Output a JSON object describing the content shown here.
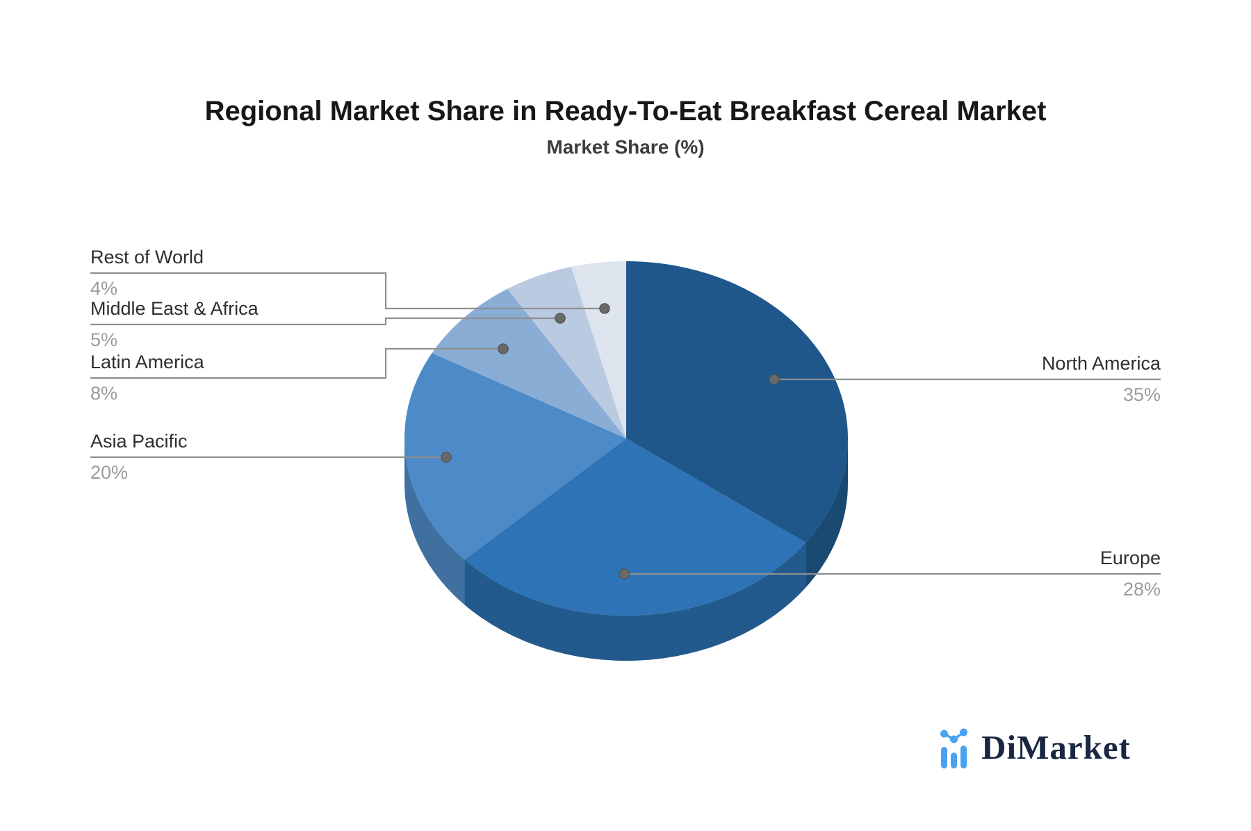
{
  "title": "Regional Market Share in Ready-To-Eat Breakfast Cereal Market",
  "subtitle": "Market Share (%)",
  "logo": {
    "text": "DiMarket",
    "icon": "bar-line-chart-icon",
    "icon_color": "#49a1f1",
    "text_color": "#1a2742"
  },
  "styles": {
    "background": "#ffffff",
    "title_color": "#171717",
    "subtitle_color": "#3d3d3d",
    "label_name_color": "#2e2e2e",
    "label_value_color": "#9c9c9c",
    "leader_line_color": "#8f8f8f",
    "leader_dot_color": "#6a6a6a"
  },
  "chart_data": {
    "type": "pie",
    "title": "Regional Market Share in Ready-To-Eat Breakfast Cereal Market",
    "subtitle": "Market Share (%)",
    "unit": "%",
    "style": "3d-pie",
    "start_angle_deg": 0,
    "direction": "clockwise",
    "legend_position": "callout-labels",
    "slices": [
      {
        "label": "North America",
        "value": 35,
        "color": "#1f578b",
        "side_color": "#1a4a72",
        "label_side": "right"
      },
      {
        "label": "Europe",
        "value": 28,
        "color": "#2d73b5",
        "side_color": "#235a8e",
        "label_side": "right"
      },
      {
        "label": "Asia Pacific",
        "value": 20,
        "color": "#4c8ac8",
        "side_color": "#3f709f",
        "label_side": "left"
      },
      {
        "label": "Latin America",
        "value": 8,
        "color": "#8aadd6",
        "side_color": "#7491b3",
        "label_side": "left"
      },
      {
        "label": "Middle East & Africa",
        "value": 5,
        "color": "#b9cae1",
        "side_color": "#9aa9bd",
        "label_side": "left"
      },
      {
        "label": "Rest of World",
        "value": 4,
        "color": "#dde4ee",
        "side_color": "#b9bfc8",
        "label_side": "left"
      }
    ]
  }
}
